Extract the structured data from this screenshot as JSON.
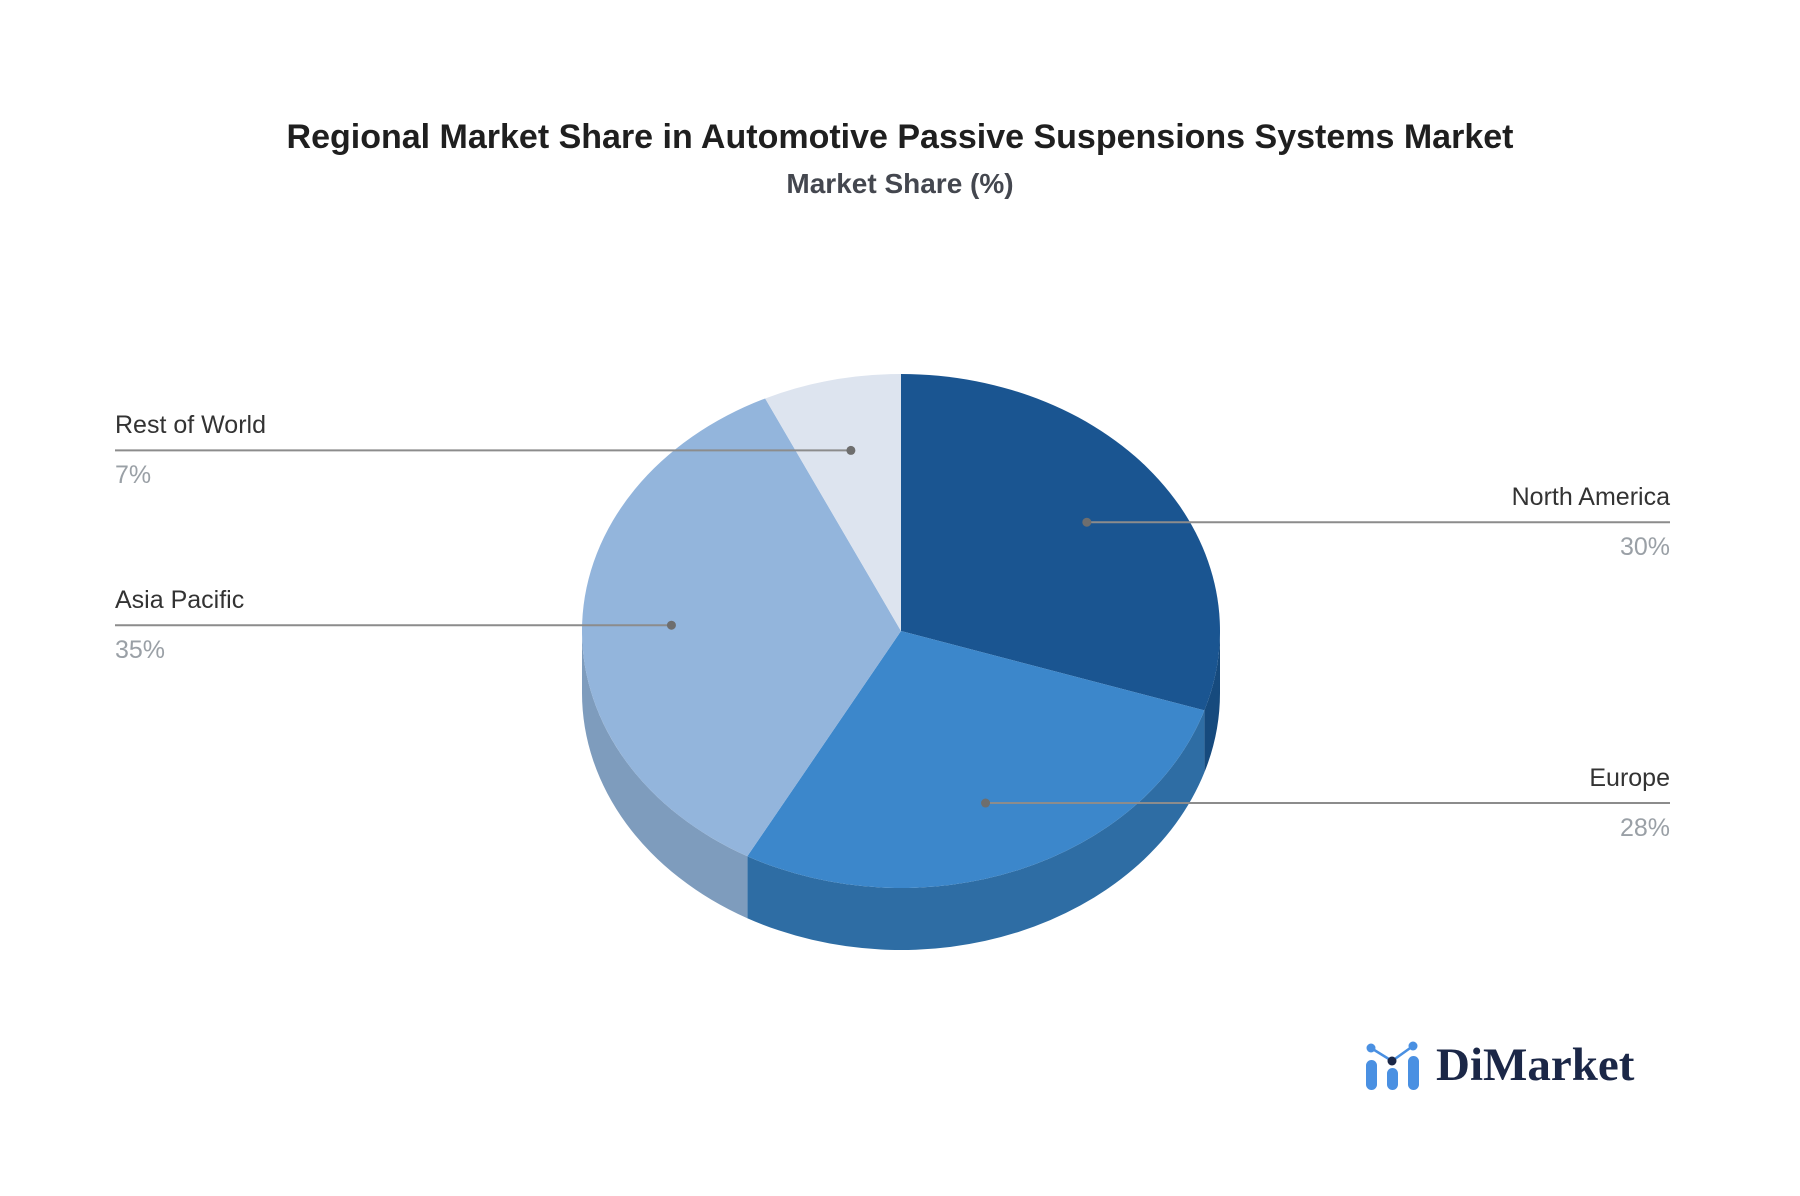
{
  "chart_data": {
    "type": "pie",
    "title": "Regional Market Share in Automotive Passive Suspensions Systems Market",
    "subtitle": "Market Share (%)",
    "unit": "%",
    "effect_3d": true,
    "legend": "none",
    "label_style": "callout-leader-lines",
    "start_angle": "12-o-clock-clockwise",
    "slices": [
      {
        "label": "North America",
        "value": 30,
        "pct_label": "30%",
        "color": "#1a5591",
        "side_color": "#164a7d",
        "label_side": "right"
      },
      {
        "label": "Europe",
        "value": 28,
        "pct_label": "28%",
        "color": "#3c87cb",
        "side_color": "#2e6da4",
        "label_side": "right"
      },
      {
        "label": "Asia Pacific",
        "value": 35,
        "pct_label": "35%",
        "color": "#93b5dc",
        "side_color": "#7e9cbd",
        "label_side": "left"
      },
      {
        "label": "Rest of World",
        "value": 7,
        "pct_label": "7%",
        "color": "#dde4ef",
        "side_color": "#c3cdde",
        "label_side": "left"
      }
    ],
    "colors": {
      "title_text": "#1f1f1f",
      "subtitle_text": "#44474f",
      "label_text": "#333333",
      "pct_text": "#9aa0a6",
      "leader_line": "#8c8c8c",
      "leader_dot": "#6e6e6e",
      "background": "#ffffff"
    }
  },
  "logo": {
    "text": "DiMarket",
    "icon": "bar-line-chart-icon",
    "text_color": "#1b2747",
    "icon_bar_color": "#4a90e2",
    "icon_dot_color": "#1b2747"
  }
}
